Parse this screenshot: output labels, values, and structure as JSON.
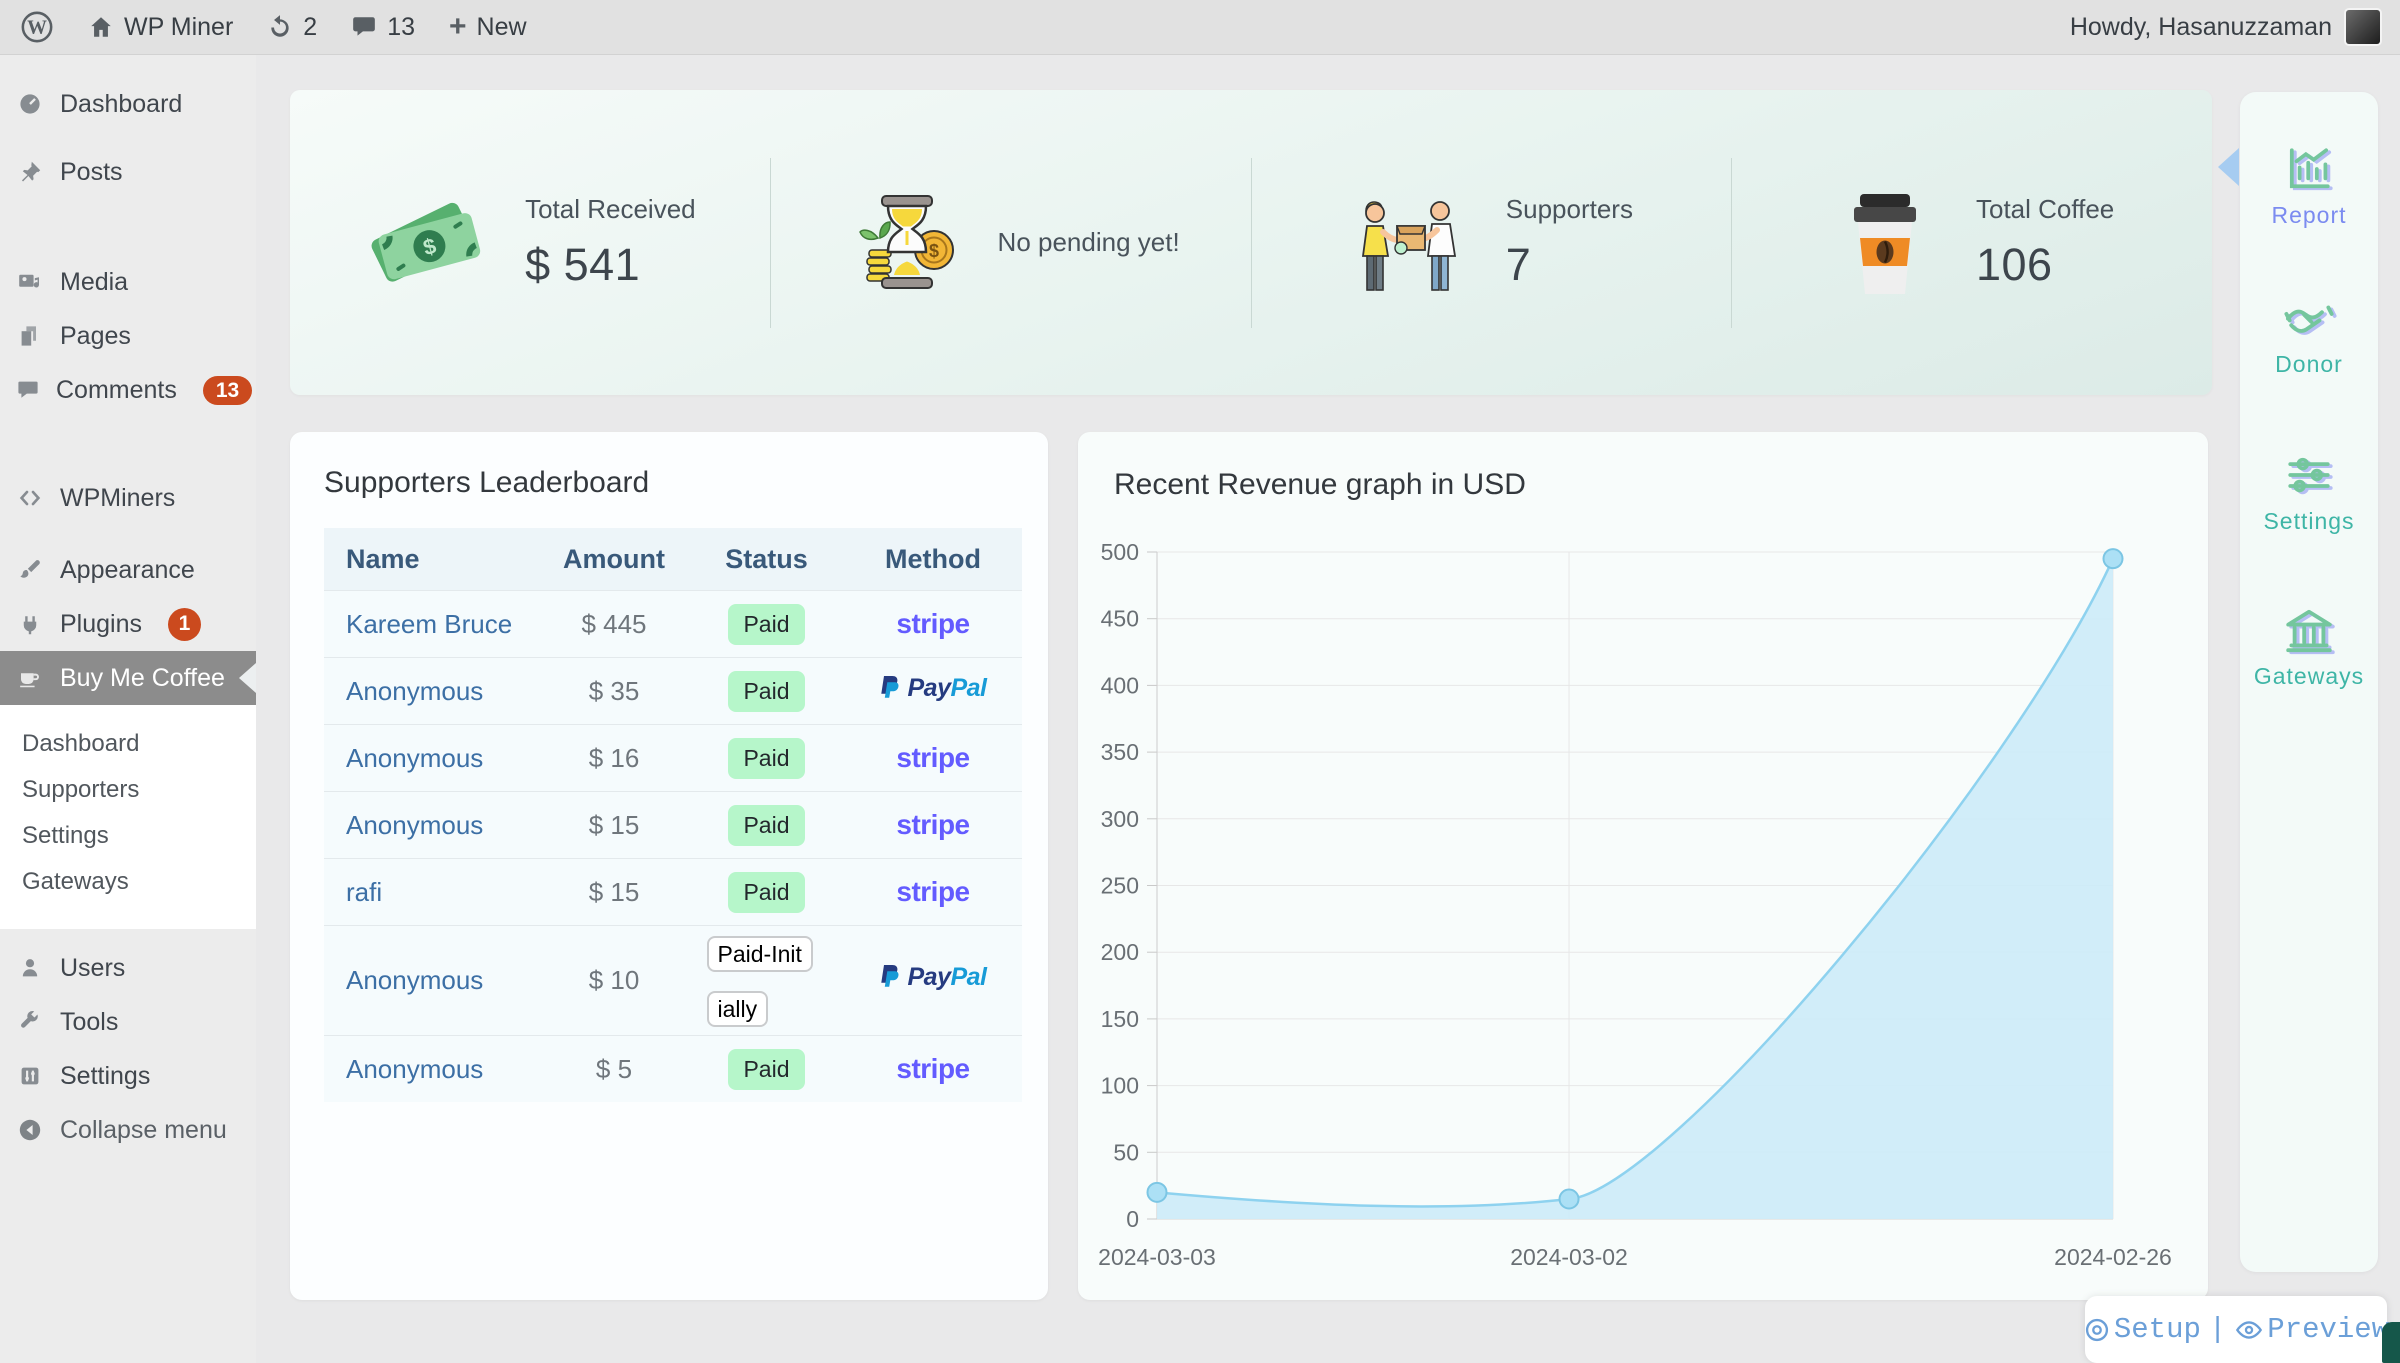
{
  "admin_bar": {
    "logo_letter": "W",
    "site_name": "WP Miner",
    "updates_count": "2",
    "comments_count": "13",
    "plus": "+",
    "new_label": "New",
    "howdy": "Howdy, Hasanuzzaman"
  },
  "sidebar": {
    "items": [
      {
        "label": "Dashboard"
      },
      {
        "label": "Posts"
      },
      {
        "label": "Media"
      },
      {
        "label": "Pages"
      },
      {
        "label": "Comments",
        "badge": "13"
      },
      {
        "label": "WPMiners"
      },
      {
        "label": "Appearance"
      },
      {
        "label": "Plugins",
        "badge": "1"
      },
      {
        "label": "Buy Me Coffee"
      },
      {
        "label": "Users"
      },
      {
        "label": "Tools"
      },
      {
        "label": "Settings"
      },
      {
        "label": "Collapse menu"
      }
    ],
    "submenu": [
      {
        "label": "Dashboard"
      },
      {
        "label": "Supporters"
      },
      {
        "label": "Settings"
      },
      {
        "label": "Gateways"
      }
    ]
  },
  "stats": {
    "items": [
      {
        "label": "Total Received",
        "value": "$ 541",
        "icon": "money-icon"
      },
      {
        "label": "No pending yet!",
        "value": "",
        "icon": "hourglass-icon"
      },
      {
        "label": "Supporters",
        "value": "7",
        "icon": "supporters-icon"
      },
      {
        "label": "Total Coffee",
        "value": "106",
        "icon": "coffee-cup-icon"
      }
    ]
  },
  "leaderboard": {
    "title": "Supporters Leaderboard",
    "columns": [
      "Name",
      "Amount",
      "Status",
      "Method"
    ],
    "rows": [
      {
        "name": "Kareem Bruce",
        "amount": "$ 445",
        "status": "Paid",
        "status_type": "paid",
        "method": "stripe"
      },
      {
        "name": "Anonymous",
        "amount": "$ 35",
        "status": "Paid",
        "status_type": "paid",
        "method": "paypal"
      },
      {
        "name": "Anonymous",
        "amount": "$ 16",
        "status": "Paid",
        "status_type": "paid",
        "method": "stripe"
      },
      {
        "name": "Anonymous",
        "amount": "$ 15",
        "status": "Paid",
        "status_type": "paid",
        "method": "stripe"
      },
      {
        "name": "rafi",
        "amount": "$ 15",
        "status": "Paid",
        "status_type": "paid",
        "method": "stripe"
      },
      {
        "name": "Anonymous",
        "amount": "$ 10",
        "status": "Paid-Initially",
        "status_type": "paid-initially",
        "method": "paypal"
      },
      {
        "name": "Anonymous",
        "amount": "$ 5",
        "status": "Paid",
        "status_type": "paid",
        "method": "stripe"
      }
    ]
  },
  "logos": {
    "stripe_text": "stripe",
    "paypal_pay": "Pay",
    "paypal_pal": "Pal"
  },
  "chart_data": {
    "type": "area",
    "title": "Recent Revenue graph in USD",
    "x": [
      "2024-03-03",
      "2024-03-02",
      "2024-02-26"
    ],
    "values": [
      20,
      15,
      495
    ],
    "ylim": [
      0,
      500
    ],
    "ytick_step": 50,
    "grid": true,
    "legend": false,
    "line_color": "#8ed2ef",
    "fill_color": "#cdebf8",
    "point_fill": "#ace0f5",
    "point_stroke": "#7cc6e4"
  },
  "right_panel": {
    "items": [
      {
        "label": "Report",
        "icon": "report-chart-icon",
        "color": "#7b8bf0"
      },
      {
        "label": "Donor",
        "icon": "donor-handshake-icon",
        "color": "#3eb5a6"
      },
      {
        "label": "Settings",
        "icon": "settings-sliders-icon",
        "color": "#3eb5a6"
      },
      {
        "label": "Gateways",
        "icon": "gateways-bank-icon",
        "color": "#3eb5a6"
      }
    ]
  },
  "footer": {
    "setup_label": "Setup",
    "separator": "|",
    "preview_label": "Preview"
  },
  "colors": {
    "badge": "#cb4a1e",
    "paid_badge_bg": "#b6f6ca",
    "stripe": "#635bff",
    "paypal_dark": "#253b80",
    "paypal_light": "#179bd7",
    "link_blue": "#3c6fa5",
    "active_menu": "#8c8c8c"
  }
}
